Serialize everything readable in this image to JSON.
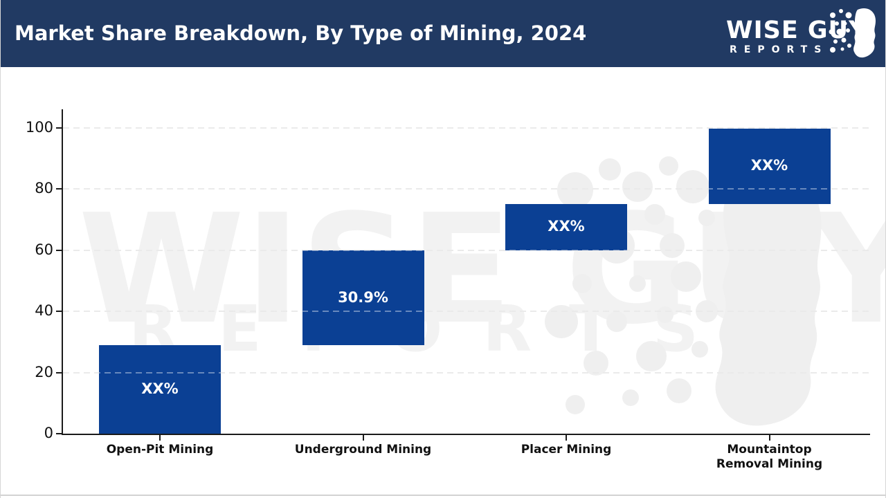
{
  "header": {
    "title": "Market Share Breakdown, By Type of Mining, 2024",
    "logo": {
      "line1": "WISE GUY",
      "line2": "REPORTS"
    }
  },
  "watermark": {
    "line1": "WISE GUY",
    "line2": "REPORTS"
  },
  "colors": {
    "header_bg": "#213a63",
    "bar": "#0b4094",
    "bar_label": "#ffffff",
    "grid": "#dedede",
    "axis": "#1a1a1a",
    "watermark": "#f2f2f2"
  },
  "chart_data": {
    "type": "bar",
    "subtype": "floating-waterfall",
    "title": "Market Share Breakdown, By Type of Mining, 2024",
    "categories": [
      "Open-Pit Mining",
      "Underground Mining",
      "Placer Mining",
      "Mountaintop Removal Mining"
    ],
    "categories_display": [
      [
        "Open-Pit Mining"
      ],
      [
        "Underground Mining"
      ],
      [
        "Placer Mining"
      ],
      [
        "Mountaintop",
        "Removal Mining"
      ]
    ],
    "segments": [
      {
        "category": "Open-Pit Mining",
        "start": 0,
        "end": 29.0,
        "label": "XX%"
      },
      {
        "category": "Underground Mining",
        "start": 29.0,
        "end": 59.9,
        "label": "30.9%",
        "value": 30.9
      },
      {
        "category": "Placer Mining",
        "start": 59.9,
        "end": 75.2,
        "label": "XX%"
      },
      {
        "category": "Mountaintop Removal Mining",
        "start": 75.2,
        "end": 99.7,
        "label": "XX%"
      }
    ],
    "yticks": [
      0,
      20,
      40,
      60,
      80,
      100
    ],
    "ylim": [
      0,
      105.7
    ],
    "xlabel": "",
    "ylabel": "",
    "grid": "dashed-horizontal",
    "legend": "none"
  }
}
